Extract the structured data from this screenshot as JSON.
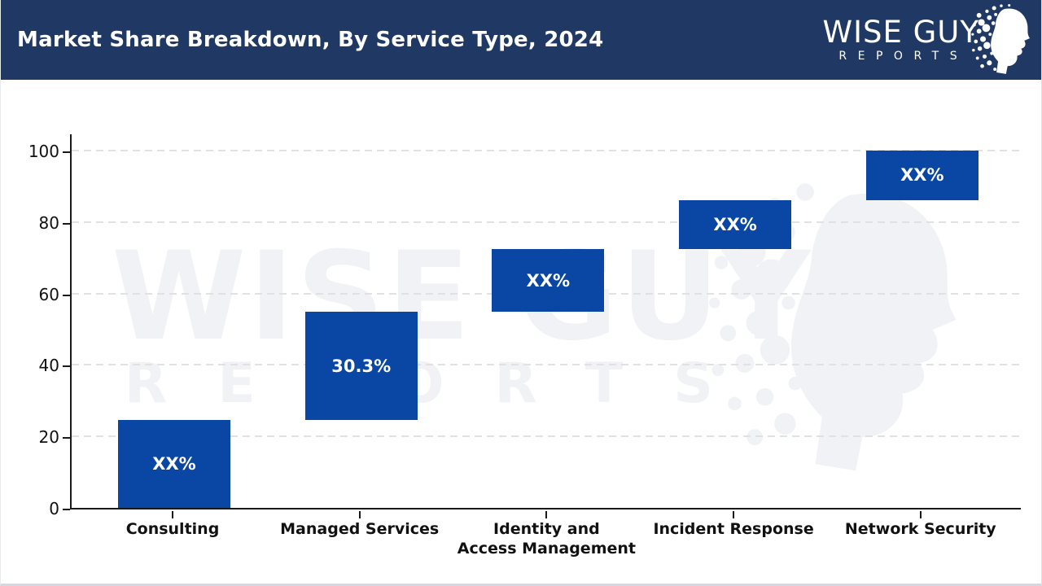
{
  "header": {
    "title": "Market Share Breakdown, By Service Type, 2024",
    "background": "#203864",
    "logo": {
      "wordmark": "WISE GUY",
      "subtext": "REPORTS"
    }
  },
  "watermark": {
    "wordmark": "WISE GUY",
    "subtext": "REPORTS"
  },
  "chart_data": {
    "type": "bar",
    "subtype": "waterfall",
    "title": "Market Share Breakdown, By Service Type, 2024",
    "xlabel": "",
    "ylabel": "",
    "categories": [
      "Consulting",
      "Managed Services",
      "Identity and Access Management",
      "Incident Response",
      "Network Security"
    ],
    "segments": [
      {
        "category": "Consulting",
        "lines": [
          "Consulting"
        ],
        "start": 0,
        "end": 24.5,
        "label": "XX%"
      },
      {
        "category": "Managed Services",
        "lines": [
          "Managed Services"
        ],
        "start": 24.5,
        "end": 54.8,
        "label": "30.3%"
      },
      {
        "category": "Identity and Access Management",
        "lines": [
          "Identity and",
          "Access Management"
        ],
        "start": 54.8,
        "end": 72.5,
        "label": "XX%"
      },
      {
        "category": "Incident Response",
        "lines": [
          "Incident Response"
        ],
        "start": 72.5,
        "end": 86.2,
        "label": "XX%"
      },
      {
        "category": "Network Security",
        "lines": [
          "Network Security"
        ],
        "start": 86.2,
        "end": 100,
        "label": "XX%"
      }
    ],
    "yticks": [
      0,
      20,
      40,
      60,
      80,
      100
    ],
    "ylim": [
      0,
      105
    ],
    "grid": "horizontal-dashed",
    "legend": "none",
    "colors": {
      "bar": "#0a46a3",
      "bar_label": "#ffffff",
      "axis": "#1a1a1a",
      "grid": "#e1e1e1",
      "header_bg": "#203864",
      "title_text": "#ffffff",
      "watermark": "#f1f2f5"
    }
  }
}
